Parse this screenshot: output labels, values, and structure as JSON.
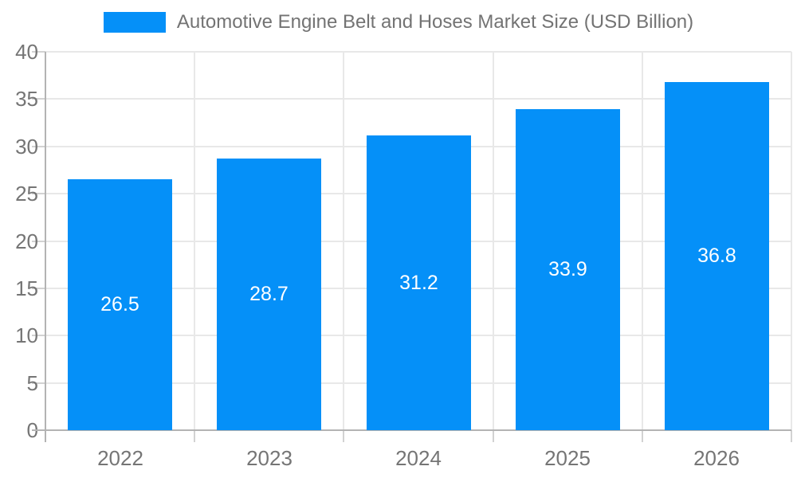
{
  "chart_data": {
    "type": "bar",
    "title": "Automotive Engine Belt and Hoses Market Size (USD Billion)",
    "legend": {
      "position": "top",
      "label": "Automotive Engine Belt and Hoses Market Size (USD Billion)"
    },
    "categories": [
      "2022",
      "2023",
      "2024",
      "2025",
      "2026"
    ],
    "series": [
      {
        "name": "Automotive Engine Belt and Hoses Market Size (USD Billion)",
        "values": [
          26.5,
          28.7,
          31.2,
          33.9,
          36.8
        ]
      }
    ],
    "value_labels": [
      "26.5",
      "28.7",
      "31.2",
      "33.9",
      "36.8"
    ],
    "xlabel": "",
    "ylabel": "",
    "ylim": [
      0,
      40
    ],
    "yticks": [
      0,
      5,
      10,
      15,
      20,
      25,
      30,
      35,
      40
    ],
    "grid": true,
    "colors": {
      "bar": "#0590F8",
      "grid": "#e8e8e8",
      "axis": "#b3b3b3",
      "tick": "#d2d2d2",
      "axis_label": "#757575",
      "legend_text": "#737373",
      "value_label": "#ffffff",
      "background": "#ffffff"
    }
  }
}
